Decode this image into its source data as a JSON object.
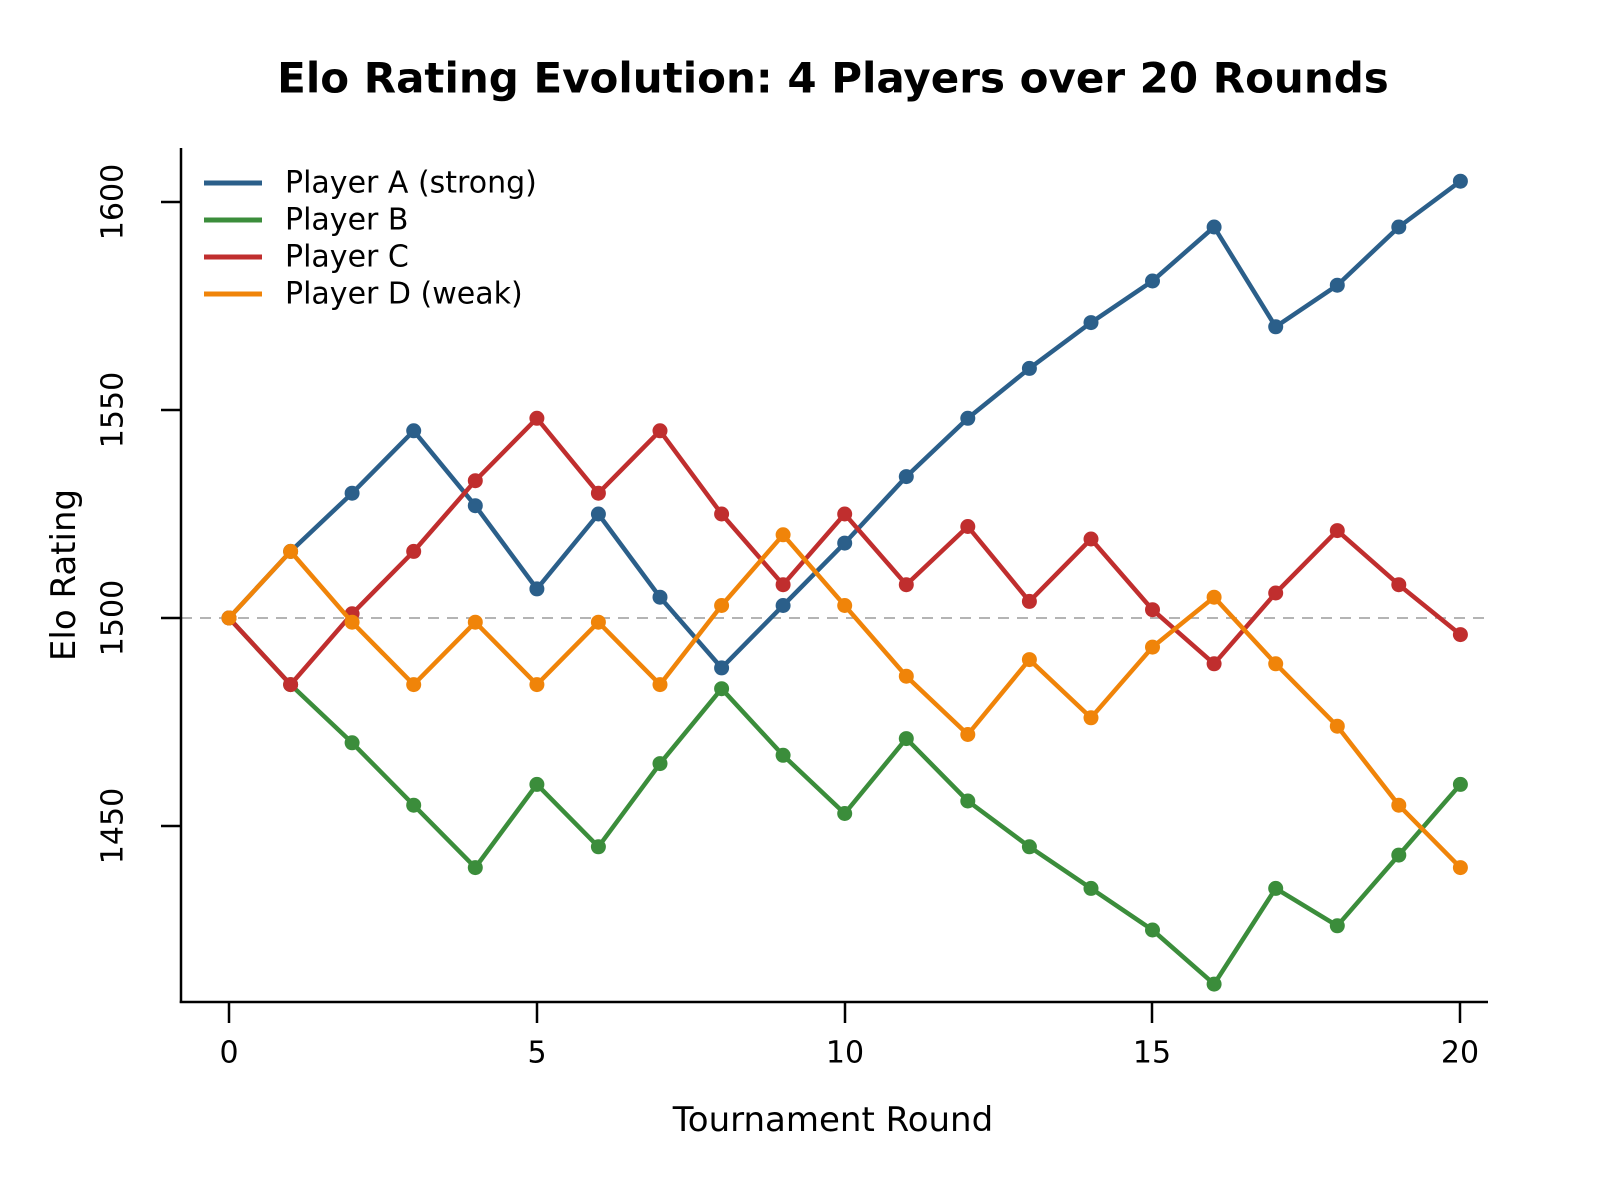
{
  "page": {
    "title": "Elo Rating Evolution: 4 Players over 20 Rounds"
  },
  "chart_data": {
    "type": "line",
    "title": "Elo Rating Evolution: 4 Players over 20 Rounds",
    "xlabel": "Tournament Round",
    "ylabel": "Elo Rating",
    "x": [
      0,
      1,
      2,
      3,
      4,
      5,
      6,
      7,
      8,
      9,
      10,
      11,
      12,
      13,
      14,
      15,
      16,
      17,
      18,
      19,
      20
    ],
    "xticks": [
      0,
      5,
      10,
      15,
      20
    ],
    "yticks": [
      1600,
      1550,
      1500,
      1450
    ],
    "xlim": [
      -0.8,
      20.4
    ],
    "ylim": [
      1408,
      1613
    ],
    "grid": false,
    "legend_position": "upper left",
    "reference_line": {
      "value": 1500,
      "style": "dashed",
      "color": "#aaaaaa"
    },
    "background_color": "#ffffff",
    "marker": "circle",
    "series": [
      {
        "name": "Player A (strong)",
        "color": "#2b5f8a",
        "values": [
          1500,
          1516,
          1530,
          1545,
          1527,
          1507,
          1525,
          1505,
          1488,
          1503,
          1518,
          1534,
          1548,
          1560,
          1571,
          1581,
          1594,
          1570,
          1580,
          1594,
          1605
        ]
      },
      {
        "name": "Player B",
        "color": "#3b8d3b",
        "values": [
          1500,
          1484,
          1470,
          1455,
          1440,
          1460,
          1445,
          1465,
          1483,
          1467,
          1453,
          1471,
          1456,
          1445,
          1435,
          1425,
          1412,
          1435,
          1426,
          1443,
          1460
        ]
      },
      {
        "name": "Player C",
        "color": "#c02e2e",
        "values": [
          1500,
          1484,
          1501,
          1516,
          1533,
          1548,
          1530,
          1545,
          1525,
          1508,
          1525,
          1508,
          1522,
          1504,
          1519,
          1502,
          1489,
          1506,
          1521,
          1508,
          1496
        ]
      },
      {
        "name": "Player D (weak)",
        "color": "#f08409",
        "values": [
          1500,
          1516,
          1499,
          1484,
          1499,
          1484,
          1499,
          1484,
          1503,
          1520,
          1503,
          1486,
          1472,
          1490,
          1476,
          1493,
          1505,
          1489,
          1474,
          1455,
          1440
        ]
      }
    ]
  }
}
